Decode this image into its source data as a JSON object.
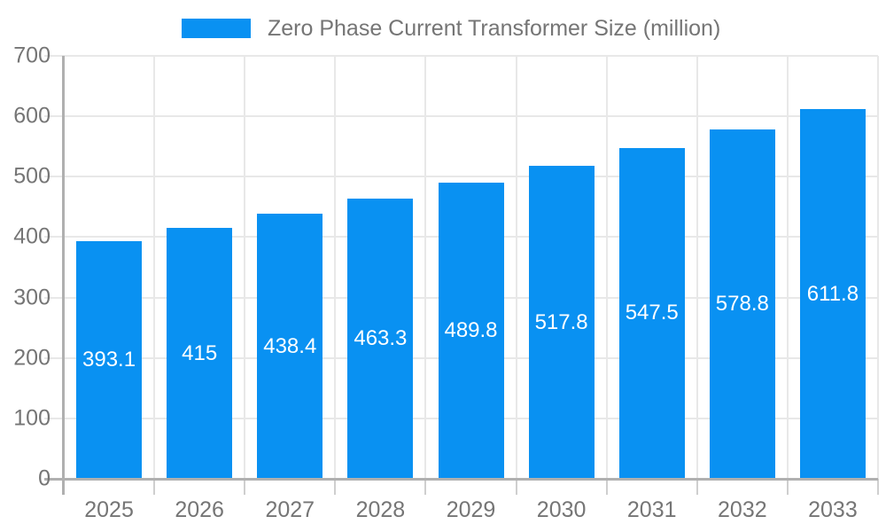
{
  "chart_data": {
    "type": "bar",
    "title": "Zero Phase Current Transformer Size (million)",
    "legend": {
      "label": "Zero Phase Current Transformer Size (million)",
      "position": "top-center"
    },
    "categories": [
      "2025",
      "2026",
      "2027",
      "2028",
      "2029",
      "2030",
      "2031",
      "2032",
      "2033"
    ],
    "series": [
      {
        "name": "Zero Phase Current Transformer Size (million)",
        "values": [
          393.1,
          415,
          438.4,
          463.3,
          489.8,
          517.8,
          547.5,
          578.8,
          611.8
        ]
      }
    ],
    "data_labels": [
      "393.1",
      "415",
      "438.4",
      "463.3",
      "489.8",
      "517.8",
      "547.5",
      "578.8",
      "611.8"
    ],
    "xlabel": "",
    "ylabel": "",
    "ylim": [
      0,
      700
    ],
    "y_ticks": [
      0,
      100,
      200,
      300,
      400,
      500,
      600,
      700
    ],
    "y_tick_labels": [
      "0",
      "100",
      "200",
      "300",
      "400",
      "500",
      "600",
      "700"
    ],
    "grid": true,
    "colors": {
      "bar": "#0991f2",
      "axis_line": "#b0b0b0",
      "gridline": "#e8e8e8",
      "tick": "#cfcfcf",
      "label_text": "#757575",
      "bar_label_text": "#ffffff",
      "background": "#ffffff"
    }
  }
}
